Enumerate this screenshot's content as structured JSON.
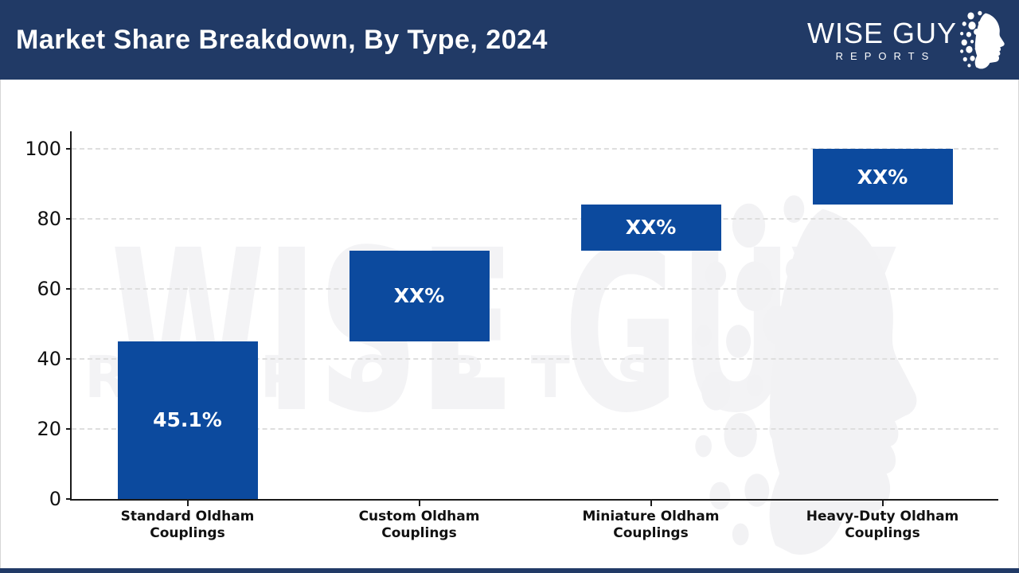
{
  "header": {
    "title": "Market Share Breakdown, By Type, 2024",
    "logo": {
      "line1": "WISE GUY",
      "line2": "REPORTS"
    }
  },
  "watermark": {
    "line1": "WISE GUY",
    "line2": "REPORTS"
  },
  "colors": {
    "header_bg": "#213A66",
    "footer_bg": "#213A66",
    "bar": "#0C4A9E",
    "bar_label": "#FFFFFF",
    "gridline": "#DEDEDE",
    "watermark": "#F3F3F5",
    "axis": "#1A1A1A"
  },
  "chart_data": {
    "type": "bar",
    "subtype": "waterfall",
    "title": "Market Share Breakdown, By Type, 2024",
    "xlabel": "",
    "ylabel": "",
    "categories": [
      "Standard Oldham\nCouplings",
      "Custom Oldham\nCouplings",
      "Miniature Oldham\nCouplings",
      "Heavy-Duty Oldham\nCouplings"
    ],
    "segments": [
      {
        "category": "Standard Oldham Couplings",
        "base": 0,
        "top": 45.1,
        "label": "45.1%"
      },
      {
        "category": "Custom Oldham Couplings",
        "base": 45.1,
        "top": 71,
        "label": "XX%"
      },
      {
        "category": "Miniature Oldham Couplings",
        "base": 71,
        "top": 84,
        "label": "XX%"
      },
      {
        "category": "Heavy-Duty Oldham Couplings",
        "base": 84,
        "top": 100,
        "label": "XX%"
      }
    ],
    "yticks": [
      0,
      20,
      40,
      60,
      80,
      100
    ],
    "ylim": [
      0,
      105
    ],
    "grid": true,
    "grid_style": "dashed",
    "legend": "none"
  }
}
